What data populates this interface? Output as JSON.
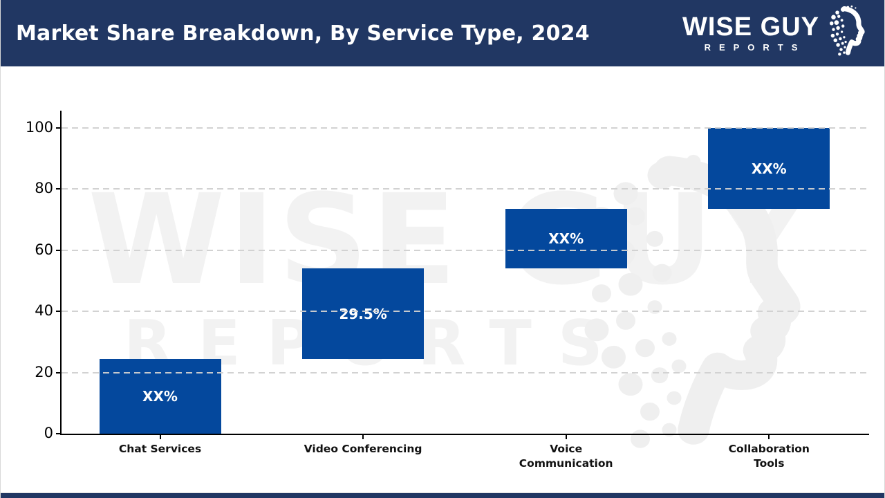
{
  "header": {
    "title": "Market Share Breakdown, By Service Type, 2024",
    "logo": {
      "line1": "WISE GUY",
      "line2": "REPORTS"
    },
    "bg_color": "#213763"
  },
  "watermark": {
    "line1": "WISE GUY",
    "line2": "REPORTS"
  },
  "chart_data": {
    "type": "bar",
    "subtype": "waterfall",
    "title": "Market Share Breakdown, By Service Type, 2024",
    "categories": [
      "Chat Services",
      "Video Conferencing",
      "Voice\nCommunication",
      "Collaboration\nTools"
    ],
    "segments": [
      {
        "category": "Chat Services",
        "start": 0,
        "end": 24.5,
        "label": "XX%"
      },
      {
        "category": "Video Conferencing",
        "start": 24.5,
        "end": 54,
        "label": "29.5%"
      },
      {
        "category": "Voice Communication",
        "start": 54,
        "end": 73.5,
        "label": "XX%"
      },
      {
        "category": "Collaboration Tools",
        "start": 73.5,
        "end": 100,
        "label": "XX%"
      }
    ],
    "ylim": [
      0,
      100
    ],
    "yticks": [
      0,
      20,
      40,
      60,
      80,
      100
    ],
    "grid": "horizontal-dashed",
    "xlabel": "",
    "ylabel": "",
    "bar_color": "#04489d",
    "bar_label_color": "#ffffff",
    "grid_color": "#d2d2d2",
    "axis_color": "#000000"
  },
  "footer": {
    "bar_color": "#213763"
  }
}
